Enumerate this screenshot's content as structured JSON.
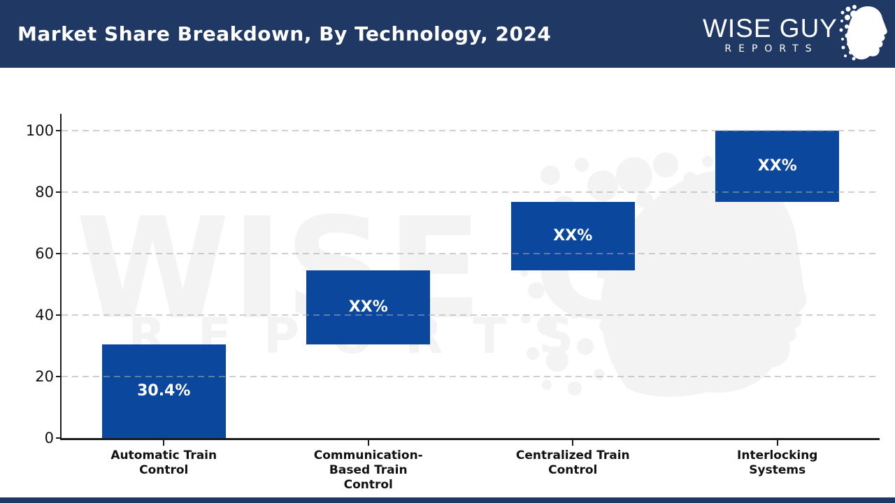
{
  "header": {
    "title": "Market Share Breakdown, By Technology, 2024",
    "bg_color": "#1f3864",
    "logo": {
      "line1": "WISE GUY",
      "line2": "REPORTS"
    }
  },
  "watermark": {
    "line1": "WISE GU",
    "line2": "REPORTS"
  },
  "footer": {
    "bg_color": "#1f3864"
  },
  "chart_data": {
    "type": "bar",
    "subtype": "waterfall-floating-bars",
    "title": "Market Share Breakdown, By Technology, 2024",
    "xlabel": "",
    "ylabel": "",
    "ylim": [
      0,
      105
    ],
    "y_ticks": [
      0,
      20,
      40,
      60,
      80,
      100
    ],
    "grid": "horizontal-dashed",
    "grid_color": "#d9d9d9",
    "bar_color": "#0b479d",
    "label_color": "#ffffff",
    "categories": [
      "Automatic Train Control",
      "Communication-Based Train Control",
      "Centralized Train Control",
      "Interlocking Systems"
    ],
    "category_label_lines": [
      [
        "Automatic Train",
        "Control"
      ],
      [
        "Communication-",
        "Based Train",
        "Control"
      ],
      [
        "Centralized Train",
        "Control"
      ],
      [
        "Interlocking",
        "Systems"
      ]
    ],
    "segments": [
      {
        "category": "Automatic Train Control",
        "start": 0,
        "end": 30.4,
        "label": "30.4%"
      },
      {
        "category": "Communication-Based Train Control",
        "start": 30.4,
        "end": 54.5,
        "label": "XX%"
      },
      {
        "category": "Centralized Train Control",
        "start": 54.5,
        "end": 76.8,
        "label": "XX%"
      },
      {
        "category": "Interlocking Systems",
        "start": 76.8,
        "end": 100,
        "label": "XX%"
      }
    ]
  }
}
